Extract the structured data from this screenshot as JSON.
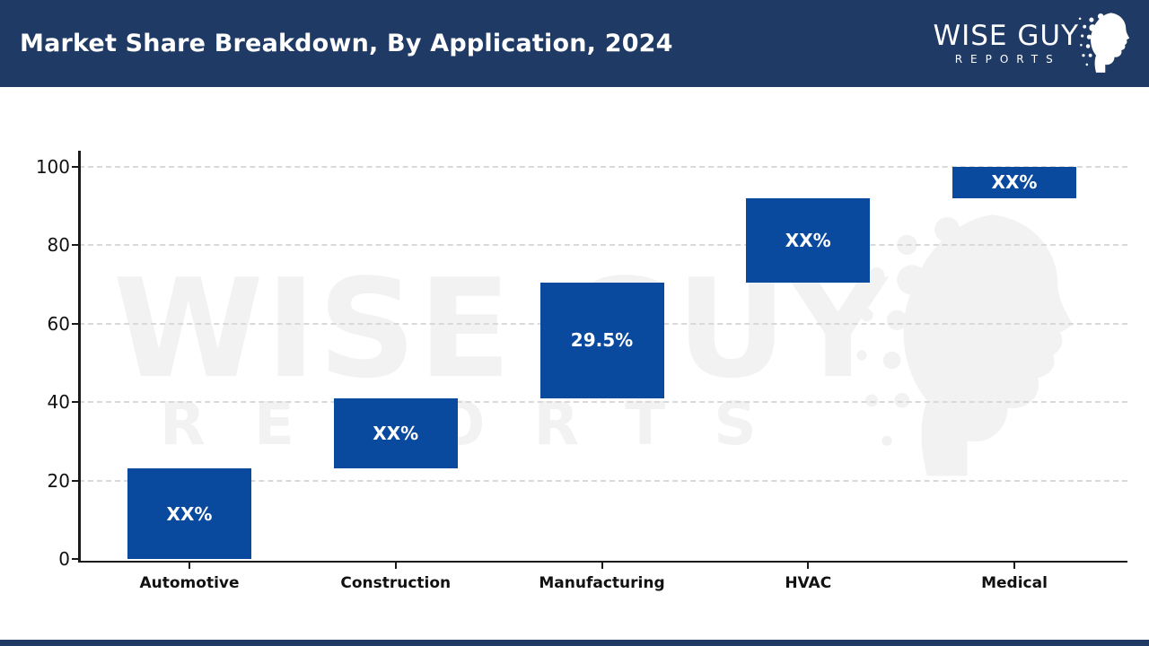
{
  "header": {
    "title": "Market Share Breakdown, By Application, 2024",
    "logo": {
      "line1": "WISE GUY",
      "line2": "REPORTS"
    }
  },
  "watermark": {
    "line1": "WISE GUY",
    "line2": "REPORTS"
  },
  "colors": {
    "header_bg": "#1f3a64",
    "footer_bg": "#1f3a64",
    "background": "#ffffff",
    "bar_fill": "#0a4a9e",
    "bar_label": "#ffffff",
    "axis": "#1a1a1a",
    "tick_label": "#111111",
    "gridline": "#d9d9d9",
    "watermark": "#f2f2f2"
  },
  "chart_data": {
    "type": "bar",
    "subtype": "waterfall",
    "title": "Market Share Breakdown, By Application, 2024",
    "categories": [
      "Automotive",
      "Construction",
      "Manufacturing",
      "HVAC",
      "Medical"
    ],
    "bars": [
      {
        "category": "Automotive",
        "start": 0,
        "end": 23,
        "height": 23,
        "label": "XX%"
      },
      {
        "category": "Construction",
        "start": 23,
        "end": 41,
        "height": 18,
        "label": "XX%"
      },
      {
        "category": "Manufacturing",
        "start": 41,
        "end": 70.5,
        "height": 29.5,
        "label": "29.5%"
      },
      {
        "category": "HVAC",
        "start": 70.5,
        "end": 92,
        "height": 21.5,
        "label": "XX%"
      },
      {
        "category": "Medical",
        "start": 92,
        "end": 100,
        "height": 8,
        "label": "XX%"
      }
    ],
    "yticks": [
      0,
      20,
      40,
      60,
      80,
      100
    ],
    "ylim": [
      0,
      104.5
    ],
    "xlabel": "",
    "ylabel": "",
    "grid": "horizontal-dashed",
    "legend": "none"
  }
}
